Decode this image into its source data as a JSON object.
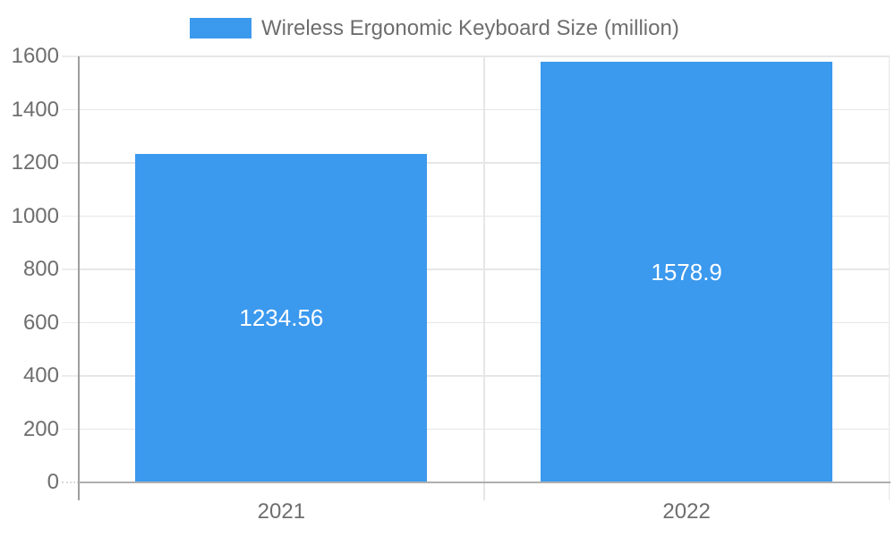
{
  "colors": {
    "bar": "#3B99EE",
    "gridline": "#E6E6E6",
    "tick": "#ECECEC",
    "tick_dotted": "#D9D9D9",
    "axis_line": "#9E9E9E",
    "zero_line": "#AFAFAF",
    "axis_text": "#6E6E6E",
    "title_text": "#6E6E6E",
    "value_text": "#FFFFFF",
    "background": "#FFFFFF"
  },
  "legend": {
    "position": "top",
    "swatch_color": "#3B99EE"
  },
  "chart_data": {
    "type": "bar",
    "title": "Wireless Ergonomic Keyboard Size (million)",
    "legend_entries": [
      "Wireless Ergonomic Keyboard Size (million)"
    ],
    "categories": [
      "2021",
      "2022"
    ],
    "series": [
      {
        "name": "Wireless Ergonomic Keyboard Size (million)",
        "values": [
          1234.56,
          1578.9
        ]
      }
    ],
    "values": [
      1234.56,
      1578.9
    ],
    "value_labels": [
      "1234.56",
      "1578.9"
    ],
    "xlabel": "",
    "ylabel": "",
    "ylim": [
      0,
      1600
    ],
    "ytick_step": 200,
    "ytick_labels": [
      "0",
      "200",
      "400",
      "600",
      "800",
      "1000",
      "1200",
      "1400",
      "1600"
    ],
    "grid": true,
    "legend_position": "top"
  }
}
